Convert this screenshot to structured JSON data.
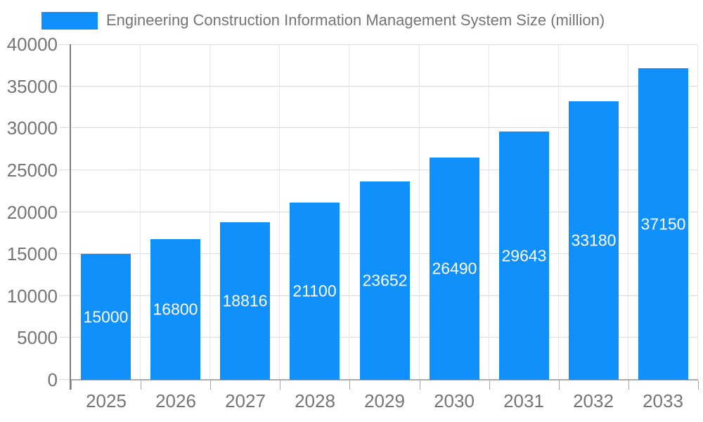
{
  "page": {
    "background": "#ffffff"
  },
  "legend": {
    "label": "Engineering Construction Information Management System Size (million)",
    "swatch_color": "#0f90fa"
  },
  "chart_data": {
    "type": "bar",
    "title": "Engineering Construction Information Management System Size (million)",
    "categories": [
      "2025",
      "2026",
      "2027",
      "2028",
      "2029",
      "2030",
      "2031",
      "2032",
      "2033"
    ],
    "values": [
      15000,
      16800,
      18816,
      21100,
      23652,
      26490,
      29643,
      33180,
      37150
    ],
    "xlabel": "",
    "ylabel": "",
    "ylim": [
      0,
      40000
    ],
    "yticks": [
      0,
      5000,
      10000,
      15000,
      20000,
      25000,
      30000,
      35000,
      40000
    ],
    "grid": true,
    "legend_position": "top-left",
    "bar_color": "#0f90fa",
    "value_label_color": "#ffffff",
    "value_labels_inside": true,
    "axis_label_color": "#757575"
  }
}
